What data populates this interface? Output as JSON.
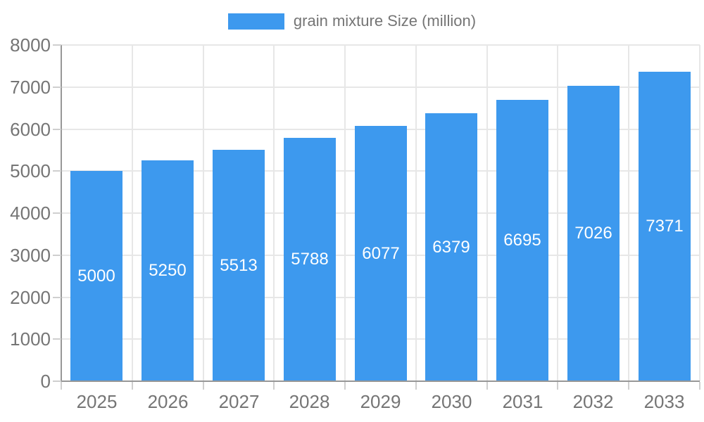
{
  "chart_data": {
    "type": "bar",
    "title": "",
    "legend_label": "grain mixture Size (million)",
    "legend_position": "top-center",
    "categories": [
      "2025",
      "2026",
      "2027",
      "2028",
      "2029",
      "2030",
      "2031",
      "2032",
      "2033"
    ],
    "values": [
      5000,
      5250,
      5513,
      5788,
      6077,
      6379,
      6695,
      7026,
      7371
    ],
    "value_labels": {
      "visible": true,
      "position": "inside-center",
      "color": "#ffffff"
    },
    "xlabel": "",
    "ylabel": "",
    "ylim": [
      0,
      8000
    ],
    "ytick_step": 1000,
    "yticks": [
      0,
      1000,
      2000,
      3000,
      4000,
      5000,
      6000,
      7000,
      8000
    ],
    "grid": true,
    "colors": {
      "bar": "#3d99ee",
      "grid": "#e7e7e7",
      "axis": "#979797",
      "tick": "#cfcfcf",
      "axis_text": "#757575",
      "background": "#ffffff"
    }
  }
}
